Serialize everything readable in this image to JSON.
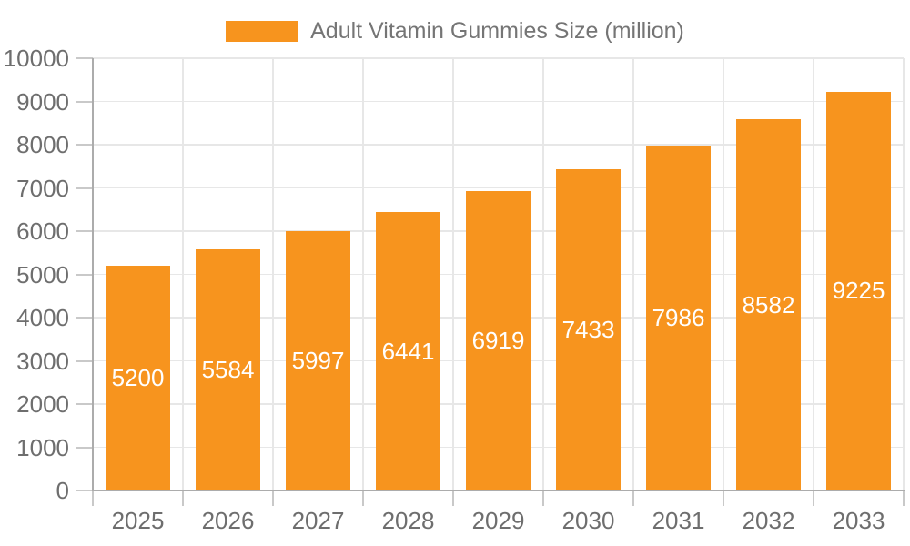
{
  "chart_data": {
    "type": "bar",
    "title": "",
    "legend": "Adult Vitamin Gummies Size (million)",
    "legend_position": "top-center",
    "categories": [
      "2025",
      "2026",
      "2027",
      "2028",
      "2029",
      "2030",
      "2031",
      "2032",
      "2033"
    ],
    "values": [
      5200,
      5584,
      5997,
      6441,
      6919,
      7433,
      7986,
      8582,
      9225
    ],
    "xlabel": "",
    "ylabel": "",
    "ylim": [
      0,
      10000
    ],
    "ytick_step": 1000,
    "ytick_labels": [
      "0",
      "1000",
      "2000",
      "3000",
      "4000",
      "5000",
      "6000",
      "7000",
      "8000",
      "9000",
      "10000"
    ],
    "grid": true,
    "bar_label_position": "inside-center",
    "colors": {
      "bar": "#F7941E",
      "bar_label_text": "#FFFFFF",
      "axis_line": "#ACACAC",
      "gridline": "#E7E7E7",
      "tick": "#C9C9C9",
      "label_text": "#6E6E6E",
      "legend_text": "#757575",
      "background": "#FFFFFF"
    }
  }
}
